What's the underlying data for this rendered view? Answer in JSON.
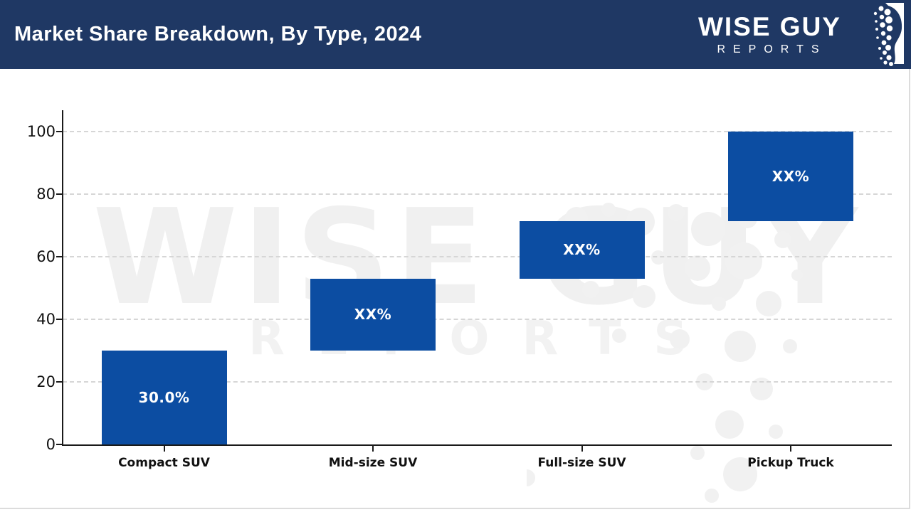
{
  "header": {
    "title": "Market Share Breakdown, By Type, 2024",
    "bg_color": "#1f3864",
    "logo": {
      "line1": "WISE GUY",
      "line2": "REPORTS"
    }
  },
  "watermark": {
    "line1": "WISE GUY",
    "line2": "REPORTS"
  },
  "chart_data": {
    "type": "bar",
    "subtype": "floating-waterfall",
    "title": "Market Share Breakdown, By Type, 2024",
    "categories": [
      "Compact SUV",
      "Mid-size SUV",
      "Full-size SUV",
      "Pickup Truck"
    ],
    "segments": [
      {
        "category": "Compact SUV",
        "start": 0,
        "end": 30,
        "label": "30.0%"
      },
      {
        "category": "Mid-size SUV",
        "start": 30,
        "end": 53,
        "label": "XX%"
      },
      {
        "category": "Full-size SUV",
        "start": 53,
        "end": 71.4,
        "label": "XX%"
      },
      {
        "category": "Pickup Truck",
        "start": 71.4,
        "end": 100,
        "label": "XX%"
      }
    ],
    "xlabel": "",
    "ylabel": "",
    "yticks": [
      0,
      20,
      40,
      60,
      80,
      100
    ],
    "ylim": [
      0,
      107
    ],
    "grid": "horizontal dashed",
    "legend": "none",
    "bar_color": "#0c4da2",
    "bar_label_color": "#ffffff"
  }
}
